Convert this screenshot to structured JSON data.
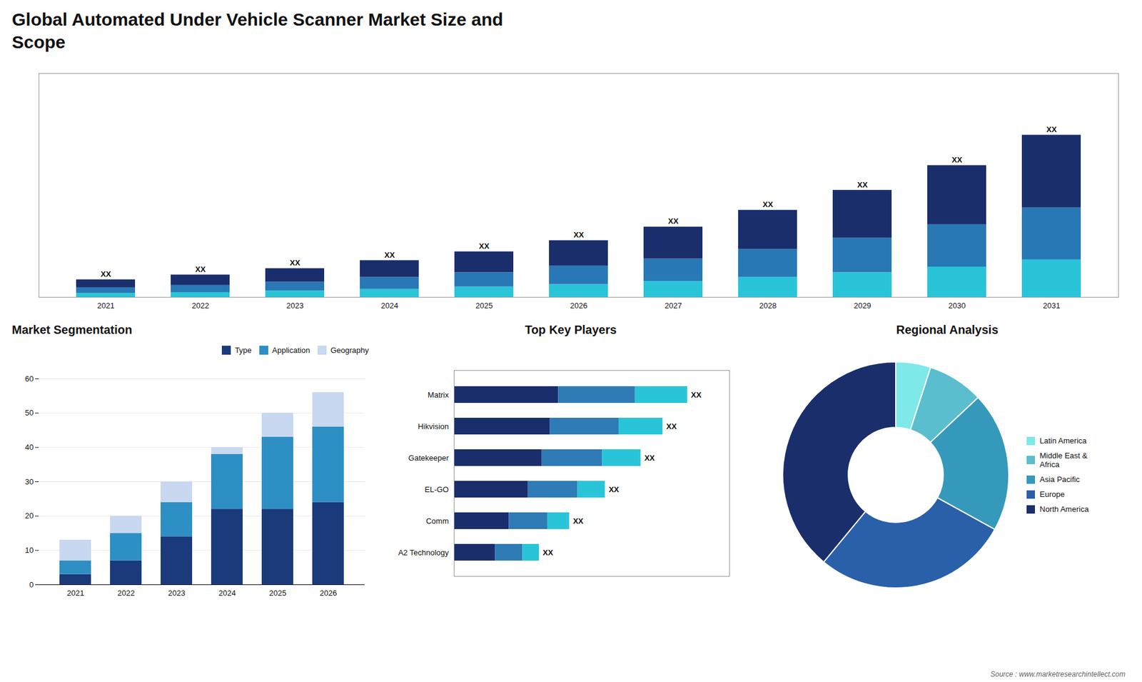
{
  "chart_data": [
    {
      "type": "bar",
      "title": "Global Automated Under Vehicle Scanner Market Size and\nScope",
      "categories": [
        "2021",
        "2022",
        "2023",
        "2024",
        "2025",
        "2026",
        "2027",
        "2028",
        "2029",
        "2030",
        "2031"
      ],
      "stacked": true,
      "series": [
        {
          "color": "#29c4d8",
          "values": [
            0.5,
            0.6,
            0.8,
            1.0,
            1.3,
            1.6,
            2.0,
            2.5,
            3.1,
            3.8,
            4.7
          ]
        },
        {
          "color": "#2878b5",
          "values": [
            0.7,
            0.9,
            1.1,
            1.5,
            1.8,
            2.3,
            2.8,
            3.5,
            4.3,
            5.3,
            6.5
          ]
        },
        {
          "color": "#1a2e6c",
          "values": [
            1.0,
            1.3,
            1.7,
            2.1,
            2.6,
            3.2,
            4.0,
            4.9,
            6.0,
            7.4,
            9.1
          ]
        }
      ],
      "ylim": [
        0,
        28.014
      ],
      "tick_labels": "x",
      "grid": false,
      "annotations": [
        "XX",
        "XX",
        "XX",
        "XX",
        "XX",
        "XX",
        "XX",
        "XX",
        "XX",
        "XX",
        "XX"
      ]
    },
    {
      "type": "bar",
      "title": "Market Segmentation",
      "categories": [
        "2021",
        "2022",
        "2023",
        "2024",
        "2025",
        "2026"
      ],
      "stacked": true,
      "series": [
        {
          "name": "Type",
          "color": "#1a3a7a",
          "values": [
            3,
            7,
            14,
            22,
            22,
            24
          ]
        },
        {
          "name": "Application",
          "color": "#2e8fc4",
          "values": [
            4,
            8,
            10,
            16,
            21,
            22
          ]
        },
        {
          "name": "Geography",
          "color": "#c8d8f0",
          "values": [
            6,
            5,
            6,
            2,
            7,
            10
          ]
        }
      ],
      "ylim": [
        0,
        60
      ],
      "yticks": [
        0,
        10,
        20,
        30,
        40,
        50,
        60
      ],
      "grid": true,
      "legend": "upper right"
    },
    {
      "type": "bar",
      "title": "Top Key Players",
      "orientation": "horizontal",
      "categories": [
        "Matrix",
        "Hikvision",
        "Gatekeeper",
        "EL-GO",
        "Comm",
        "A2 Technology"
      ],
      "stacked": true,
      "series": [
        {
          "color": "#1a2e6c",
          "values": [
            38,
            35,
            32,
            27,
            20,
            15
          ]
        },
        {
          "color": "#2e7bb5",
          "values": [
            28,
            25,
            22,
            18,
            14,
            10
          ]
        },
        {
          "color": "#29c4d8",
          "values": [
            19,
            16,
            14,
            10,
            8,
            6
          ]
        }
      ],
      "xlim": [
        0,
        100.3
      ],
      "tick_labels": "y",
      "grid": false,
      "annotations": [
        "XX",
        "XX",
        "XX",
        "XX",
        "XX",
        "XX"
      ]
    },
    {
      "type": "pie",
      "title": "Regional Analysis",
      "categories": [
        "Latin America",
        "Middle East &\nAfrica",
        "Asia Pacific",
        "Europe",
        "North America"
      ],
      "values": [
        5,
        8,
        20,
        28,
        39
      ],
      "colors": [
        "#7fe8e8",
        "#5abece",
        "#3599bb",
        "#2a5faa",
        "#1a2e6c"
      ],
      "legend": "right",
      "annotations": [
        "Source : www.marketresearchintellect.com"
      ]
    }
  ]
}
